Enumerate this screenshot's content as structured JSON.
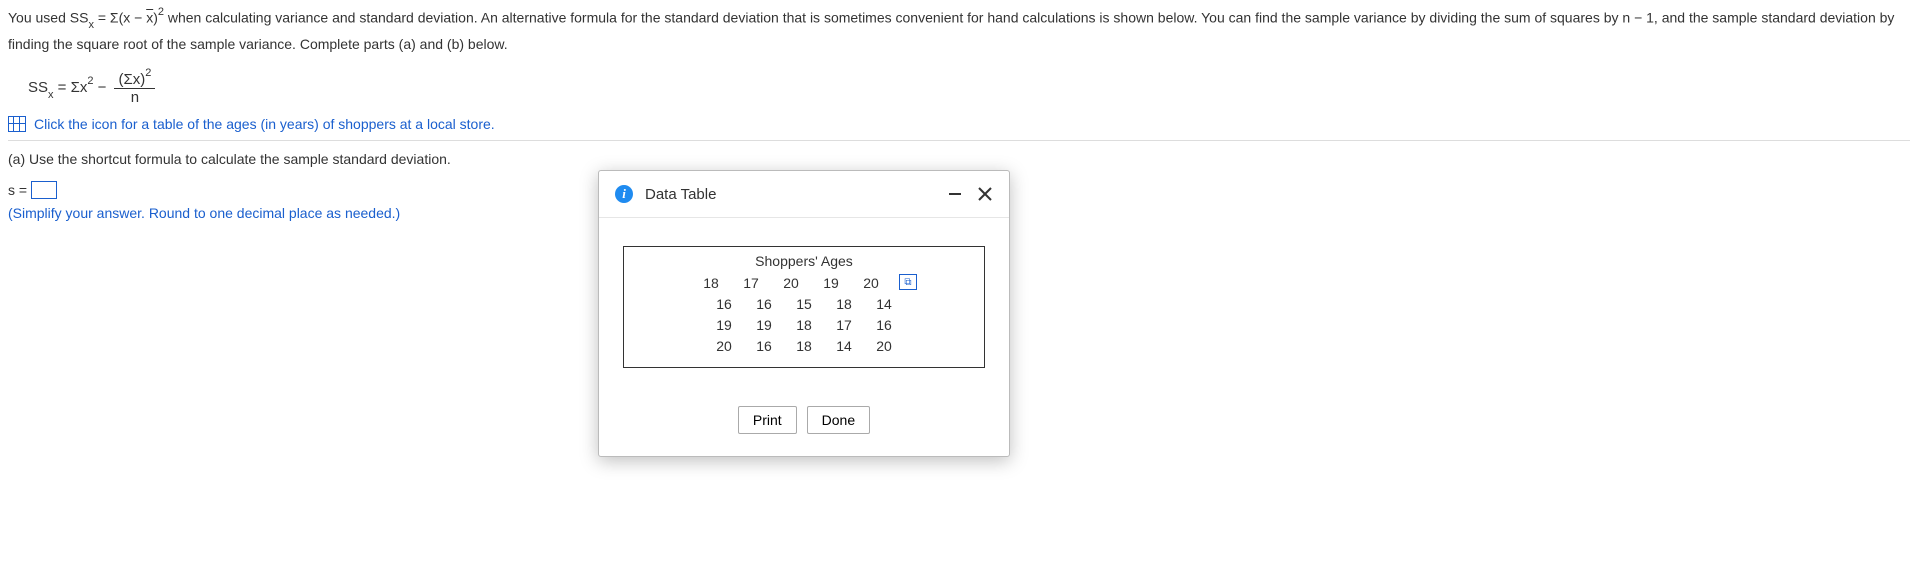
{
  "intro_line1": "You used SS",
  "intro_sub1": "x",
  "intro_mid1": " = Σ(x − ",
  "intro_xbar": "x",
  "intro_mid2": ")",
  "intro_sup1": "2",
  "intro_rest1": " when calculating variance and standard deviation. An alternative formula for the standard deviation that is sometimes convenient for hand calculations is shown below. You can find the sample variance by dividing the sum of squares by n − 1, and the sample standard deviation by finding the square root of the sample variance. Complete parts (a) and (b) below.",
  "formula": {
    "lhs1": "SS",
    "lhs_sub": "x",
    "lhs2": " = Σx",
    "lhs_sup": "2",
    "lhs3": " − ",
    "num_a": "(Σx)",
    "num_sup": "2",
    "den": "n"
  },
  "data_link_text": "Click the icon for a table of the ages (in years) of shoppers at a local store.",
  "part_a_text": "(a) Use the shortcut formula to calculate the sample standard deviation.",
  "answer": {
    "label": "s = ",
    "value": "",
    "simplify": "(Simplify your answer. Round to one decimal place as needed.)"
  },
  "dialog": {
    "title": "Data Table",
    "caption": "Shoppers' Ages",
    "rows": [
      [
        "18",
        "17",
        "20",
        "19",
        "20"
      ],
      [
        "16",
        "16",
        "15",
        "18",
        "14"
      ],
      [
        "19",
        "19",
        "18",
        "17",
        "16"
      ],
      [
        "20",
        "16",
        "18",
        "14",
        "20"
      ]
    ],
    "buttons": {
      "print": "Print",
      "done": "Done"
    }
  },
  "colors": {
    "link": "#1a5fce",
    "info_bg": "#1f8bf0",
    "border": "#bbbbbb",
    "text": "#333333"
  }
}
